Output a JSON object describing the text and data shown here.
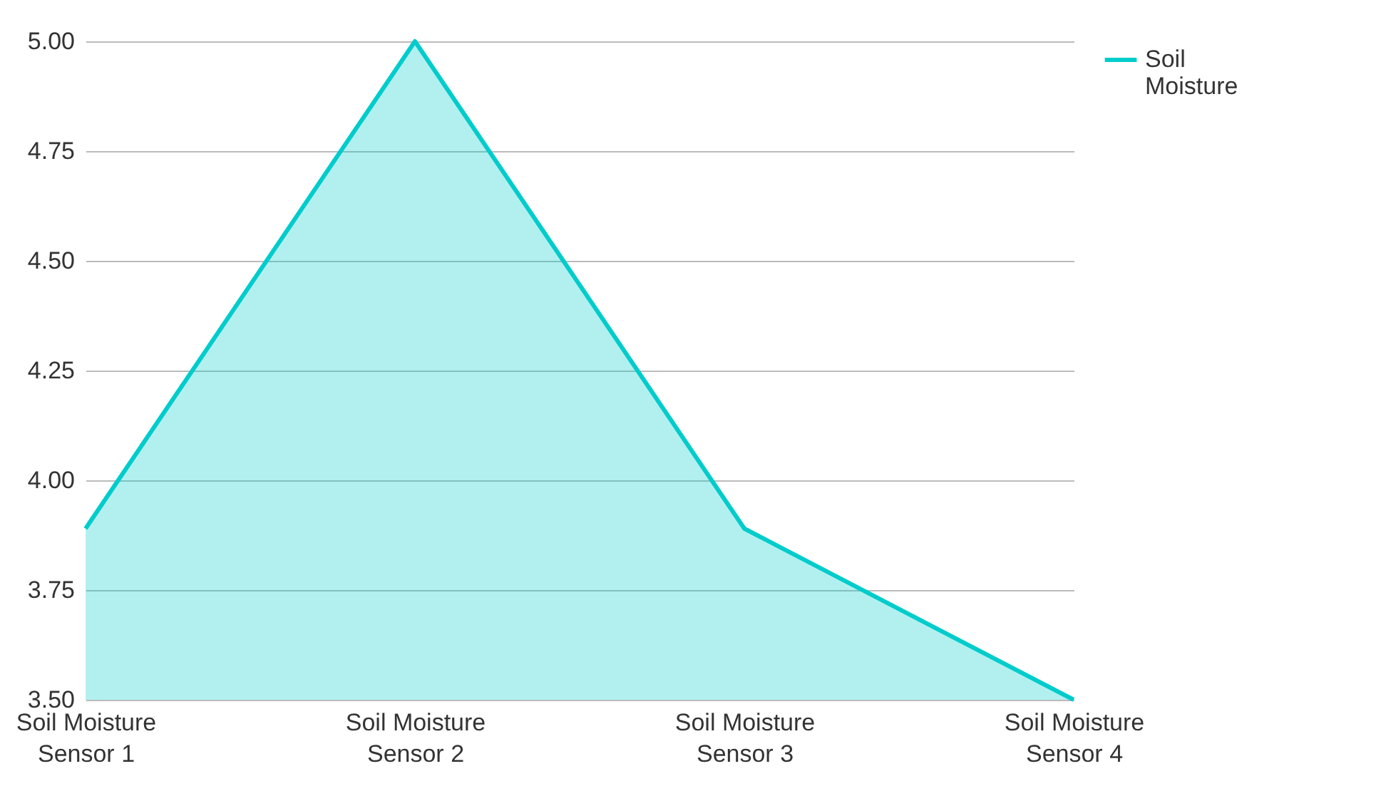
{
  "chart_data": {
    "type": "area",
    "categories": [
      "Soil Moisture Sensor 1",
      "Soil Moisture Sensor 2",
      "Soil Moisture Sensor 3",
      "Soil Moisture Sensor 4"
    ],
    "series": [
      {
        "name": "Soil Moisture",
        "color": "#00cccc",
        "values": [
          3.89,
          5.0,
          3.89,
          3.5
        ]
      }
    ],
    "ylim": [
      3.5,
      5.0
    ],
    "yticks": [
      {
        "value": 3.5,
        "label": "3.50"
      },
      {
        "value": 3.75,
        "label": "3.75"
      },
      {
        "value": 4.0,
        "label": "4.00"
      },
      {
        "value": 4.25,
        "label": "4.25"
      },
      {
        "value": 4.5,
        "label": "4.50"
      },
      {
        "value": 4.75,
        "label": "4.75"
      },
      {
        "value": 5.0,
        "label": "5.00"
      }
    ],
    "grid": "y",
    "legend": "top right",
    "marker": "none"
  }
}
